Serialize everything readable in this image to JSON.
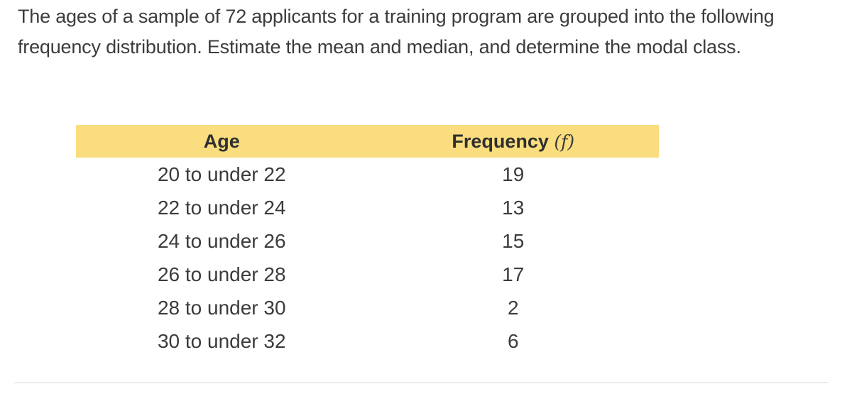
{
  "problem": {
    "text": "The ages of a sample of 72 applicants for a training program are grouped into the following frequency distribution. Estimate the mean and median, and determine the modal class."
  },
  "table": {
    "header": {
      "age_label": "Age",
      "frequency_label": "Frequency",
      "frequency_symbol": "(f)",
      "background": "#f9dd7e"
    },
    "rows": [
      {
        "age": "20 to under 22",
        "frequency": "19"
      },
      {
        "age": "22 to under 24",
        "frequency": "13"
      },
      {
        "age": "24 to under 26",
        "frequency": "15"
      },
      {
        "age": "26 to under 28",
        "frequency": "17"
      },
      {
        "age": "28 to under 30",
        "frequency": "2"
      },
      {
        "age": "30 to under 32",
        "frequency": "6"
      }
    ]
  },
  "colors": {
    "header_background": "#f9dd7e",
    "body_text": "#3b3b3b",
    "divider": "#ececec"
  }
}
